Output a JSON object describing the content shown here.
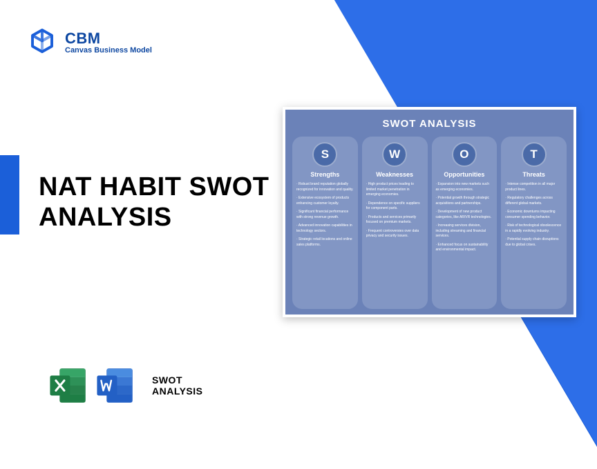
{
  "logo": {
    "title": "CBM",
    "subtitle": "Canvas Business Model",
    "icon_color": "#1b5fd9"
  },
  "main_title": "NAT HABIT SWOT\nANALYSIS",
  "bottom": {
    "label_line1": "SWOT",
    "label_line2": "ANALYSIS",
    "excel_color": "#1e7e45",
    "word_color": "#2360c5"
  },
  "swot_card": {
    "title": "SWOT ANALYSIS",
    "background": "#6b82b8",
    "column_bg": "#8296c4",
    "circle_bg": "#4a6aa8",
    "columns": [
      {
        "letter": "S",
        "title": "Strengths",
        "items": [
          "Robust brand reputation globally recognized for innovation and quality.",
          "Extensive ecosystem of products enhancing customer loyalty.",
          "Significant financial performance with strong revenue growth.",
          "Advanced innovation capabilities in technology sectors.",
          "Strategic retail locations and online sales platforms."
        ]
      },
      {
        "letter": "W",
        "title": "Weaknesses",
        "items": [
          "High product prices leading to limited market penetration in emerging economies.",
          "Dependence on specific suppliers for component parts.",
          "Products and services primarily focused on premium markets.",
          "Frequent controversies over data privacy and security issues."
        ]
      },
      {
        "letter": "O",
        "title": "Opportunities",
        "items": [
          "Expansion into new markets such as emerging economies.",
          "Potential growth through strategic acquisitions and partnerships.",
          "Development of new product categories, like AR/VR technologies.",
          "Increasing services division, including streaming and financial services.",
          "Enhanced focus on sustainability and environmental impact."
        ]
      },
      {
        "letter": "T",
        "title": "Threats",
        "items": [
          "Intense competition in all major product lines.",
          "Regulatory challenges across different global markets.",
          "Economic downturns impacting consumer spending behavior.",
          "Risk of technological obsolescence in a rapidly evolving industry.",
          "Potential supply chain disruptions due to global crises."
        ]
      }
    ]
  }
}
